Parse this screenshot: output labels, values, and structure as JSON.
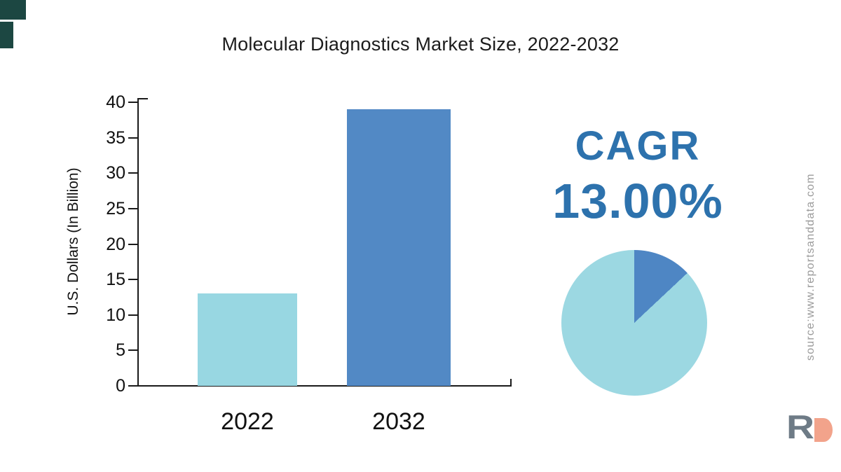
{
  "title": "Molecular Diagnostics Market Size, 2022-2032",
  "chart_data": {
    "type": "bar",
    "title": "Molecular Diagnostics Market Size, 2022-2032",
    "categories": [
      "2022",
      "2032"
    ],
    "values": [
      13,
      39
    ],
    "xlabel": "",
    "ylabel": "U.S. Dollars (In Billion)",
    "ylim": [
      0,
      40
    ],
    "yticks": [
      0,
      5,
      10,
      15,
      20,
      25,
      30,
      35,
      40
    ],
    "bar_colors": [
      "#98d7e2",
      "#5289c5"
    ],
    "grid": false,
    "legend": "none"
  },
  "cagr": {
    "label": "CAGR",
    "value": "13.00%",
    "color": "#2d72ad"
  },
  "pie_chart": {
    "type": "pie",
    "slices": [
      {
        "name": "cagr-highlight",
        "value": 13,
        "color": "#4e86c4"
      },
      {
        "name": "remainder",
        "value": 87,
        "color": "#9cd8e2"
      }
    ],
    "start_angle_deg": 0,
    "direction": "clockwise"
  },
  "source": {
    "text": "source:www.reportsanddata.com",
    "color": "#9b9b9b"
  },
  "logo": {
    "letter": "R",
    "letter_color": "#6e7b86",
    "mark_color": "#f2a38b"
  },
  "brand_squares": {
    "color": "#1c4742"
  },
  "axis_color": "#1a1a1a"
}
